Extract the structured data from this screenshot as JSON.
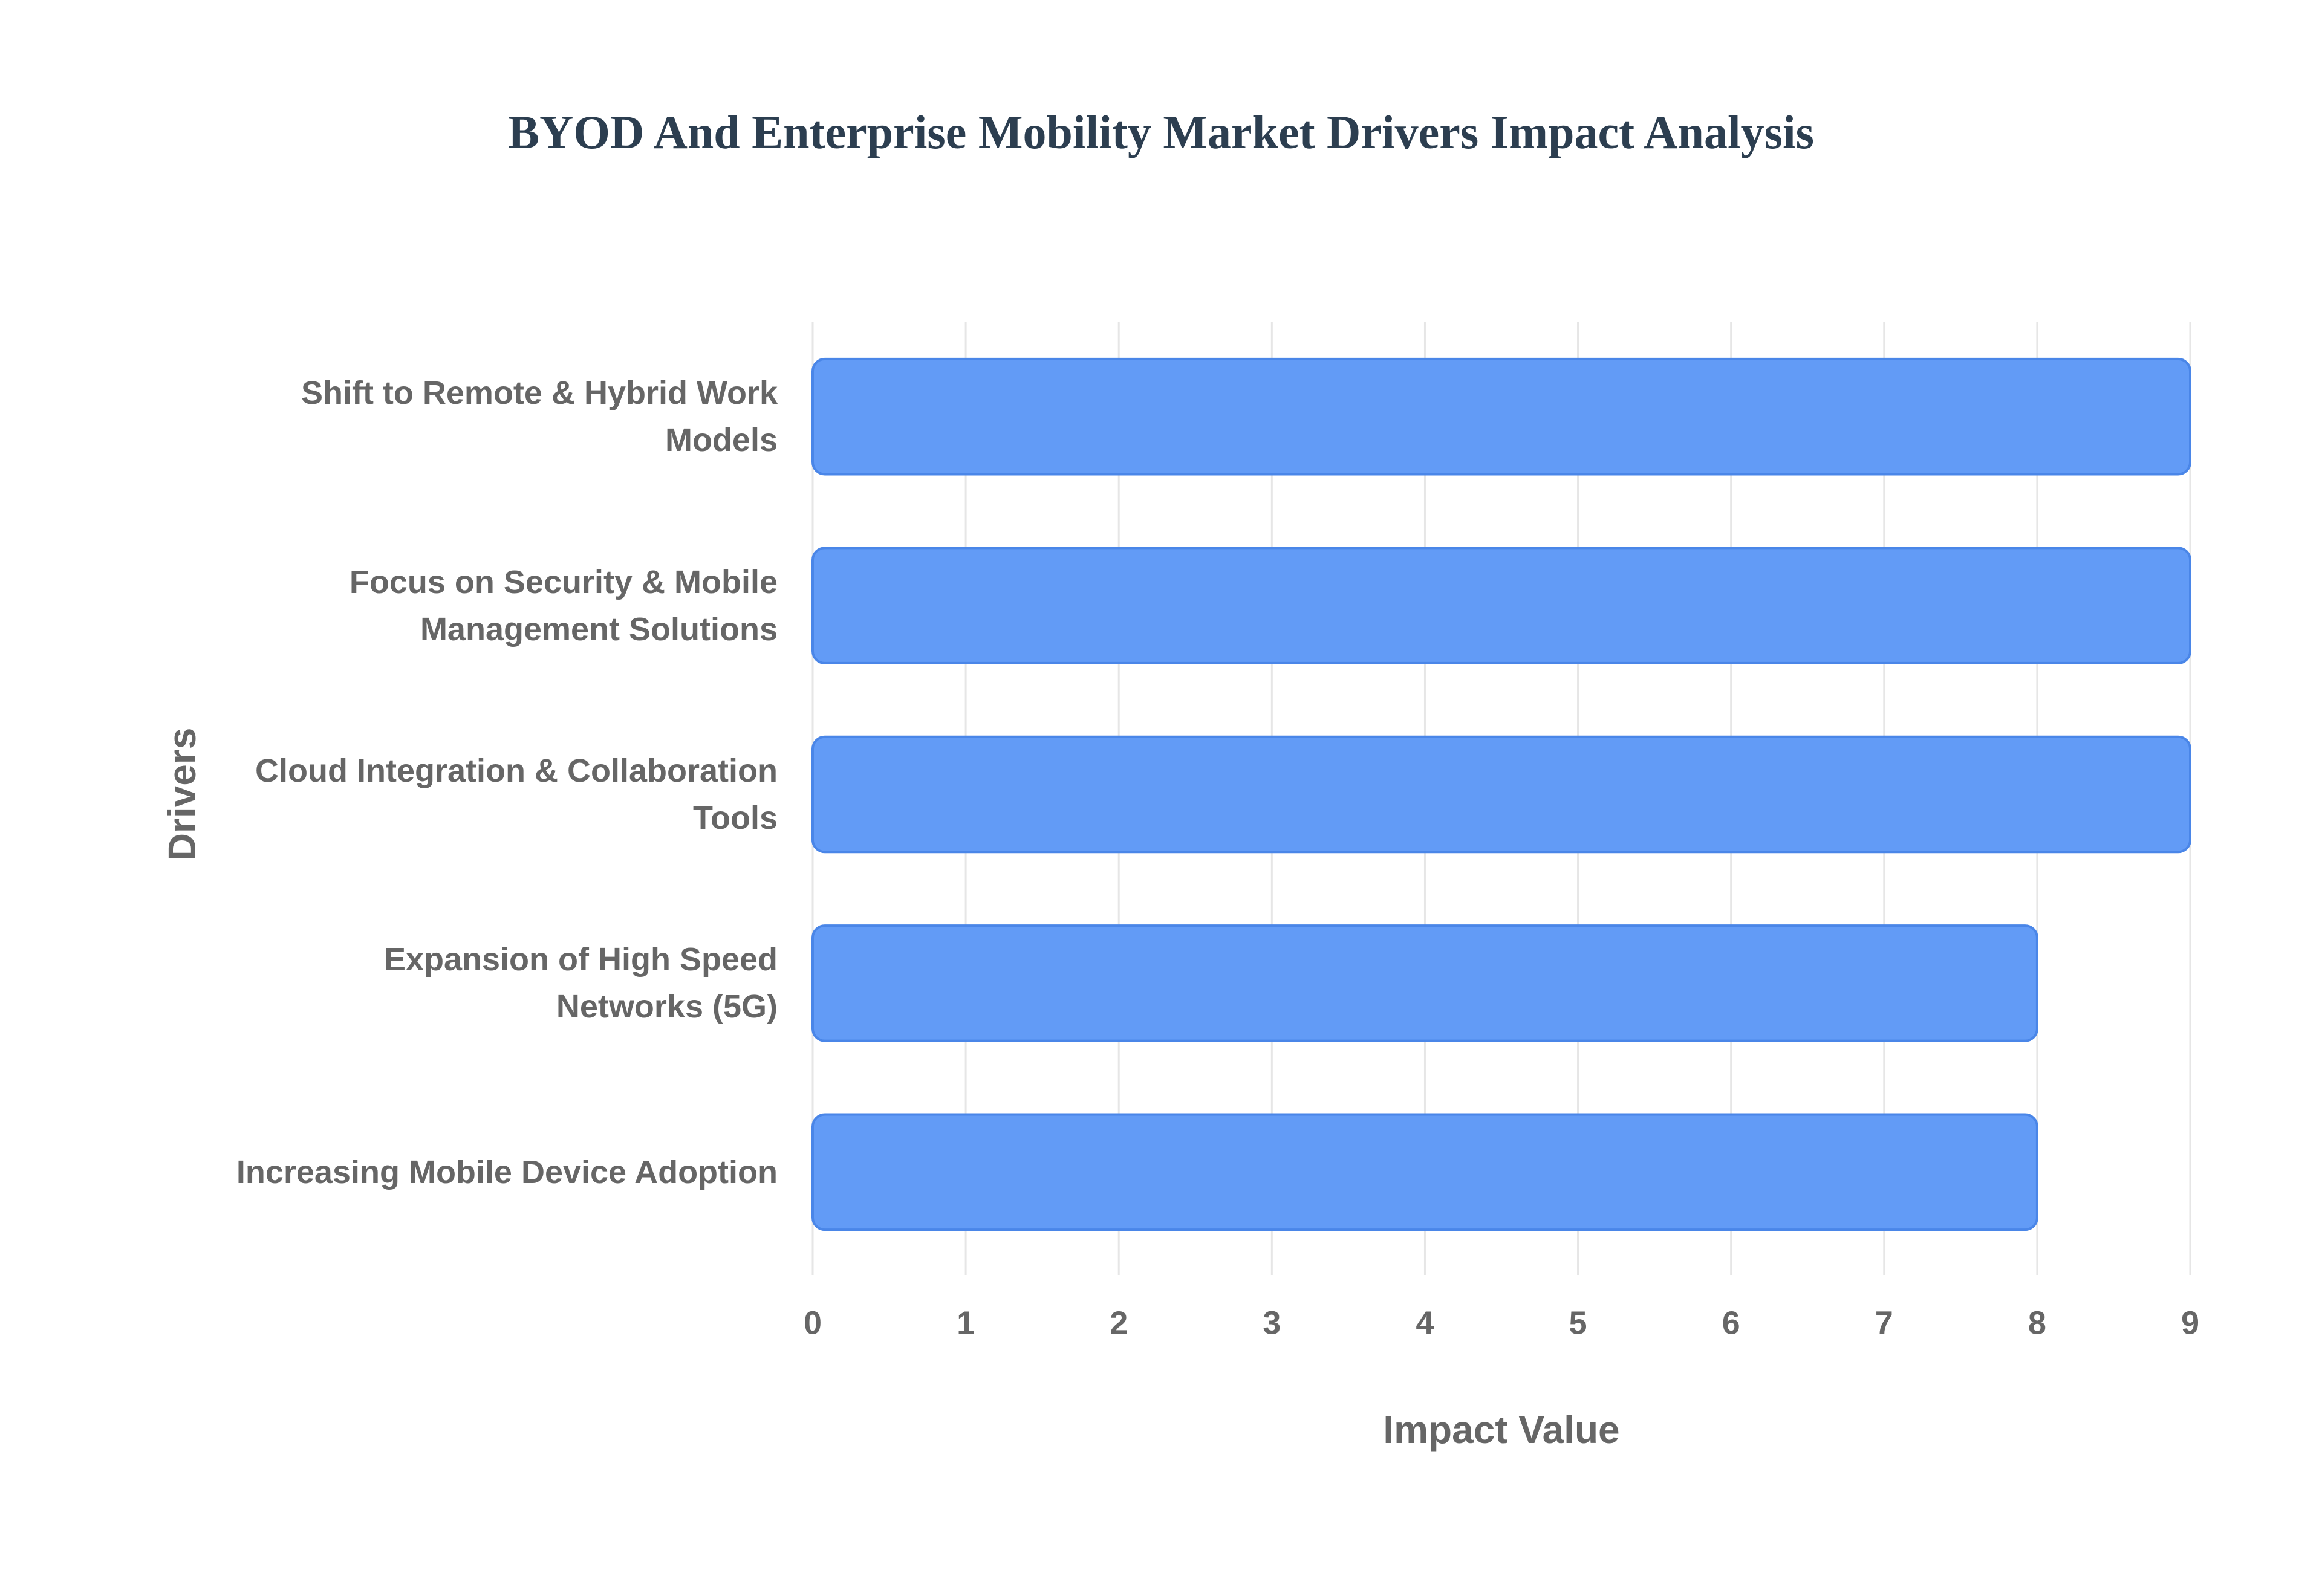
{
  "chart_data": {
    "type": "bar",
    "orientation": "horizontal",
    "title": "BYOD And Enterprise Mobility Market Drivers Impact Analysis",
    "x_label": "Impact Value",
    "y_label": "Drivers",
    "categories": [
      "Shift to Remote & Hybrid Work Models",
      "Focus on Security & Mobile Management Solutions",
      "Cloud Integration & Collaboration Tools",
      "Expansion of High Speed Networks (5G)",
      "Increasing Mobile Device Adoption"
    ],
    "values": [
      9,
      9,
      9,
      8,
      8
    ],
    "color": "#629bf6",
    "xlim": [
      0,
      9
    ],
    "xticks": [
      0,
      1,
      2,
      3,
      4,
      5,
      6,
      7,
      8,
      9
    ],
    "grid": true
  }
}
